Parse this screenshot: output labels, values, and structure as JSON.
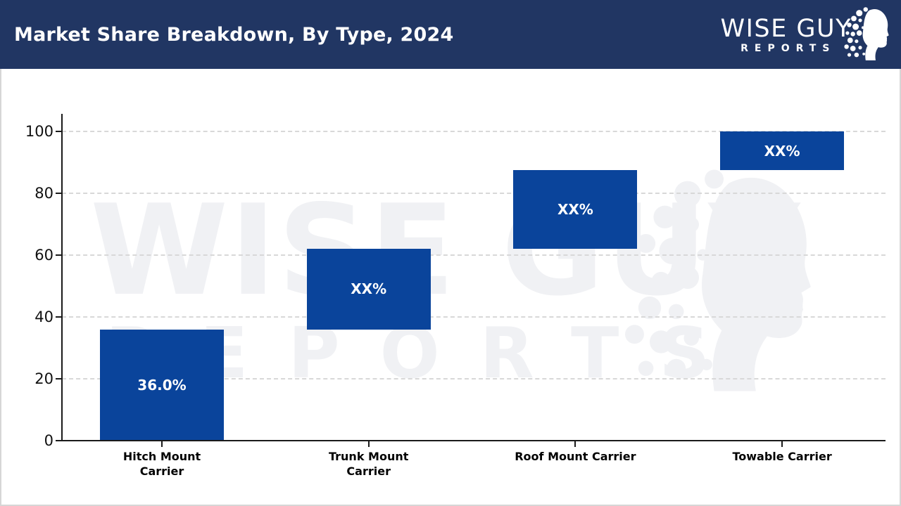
{
  "header": {
    "title": "Market Share Breakdown, By Type, 2024",
    "logo": {
      "wordmark": "WISE GUY",
      "subtext": "REPORTS"
    }
  },
  "watermark": {
    "wordmark": "WISE GUY",
    "subtext": "REPORTS"
  },
  "chart_data": {
    "type": "bar",
    "variant": "waterfall",
    "title": "Market Share Breakdown, By Type, 2024",
    "categories": [
      "Hitch Mount\nCarrier",
      "Trunk Mount\nCarrier",
      "Roof Mount Carrier",
      "Towable Carrier"
    ],
    "segments": [
      {
        "category": "Hitch Mount Carrier",
        "start": 0,
        "end": 36,
        "label": "36.0%"
      },
      {
        "category": "Trunk Mount Carrier",
        "start": 36,
        "end": 62,
        "label": "XX%"
      },
      {
        "category": "Roof Mount Carrier",
        "start": 62,
        "end": 87.5,
        "label": "XX%"
      },
      {
        "category": "Towable Carrier",
        "start": 87.5,
        "end": 100,
        "label": "XX%"
      }
    ],
    "ylim": [
      0,
      100
    ],
    "yticks": [
      0,
      20,
      40,
      60,
      80,
      100
    ],
    "grid": "horizontal-dashed",
    "legend": "none"
  },
  "colors": {
    "header_bg": "#213663",
    "bar": "#0a449b",
    "bar_label": "#ffffff",
    "grid_line": "#d8d8d8",
    "axis_line": "#1a1a1a",
    "tick_text": "#111111",
    "watermark": "#f0f1f4",
    "page_bg": "#ffffff"
  }
}
